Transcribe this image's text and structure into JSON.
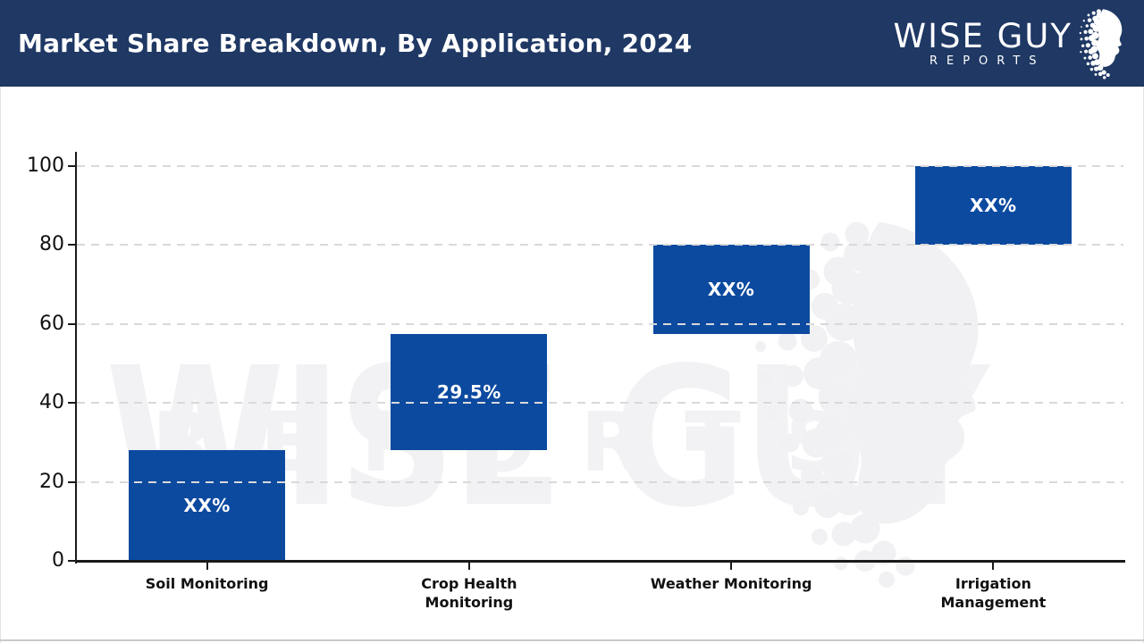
{
  "header": {
    "title": "Market Share Breakdown, By Application, 2024",
    "logo": {
      "line1": "WISE GUY",
      "line2": "REPORTS"
    }
  },
  "watermark": {
    "line1": "WISE GUY",
    "line2": "REPORTS"
  },
  "chart_data": {
    "type": "bar",
    "variant": "floating-waterfall",
    "title": "Market Share Breakdown, By Application, 2024",
    "categories": [
      "Soil Monitoring",
      "Crop Health Monitoring",
      "Weather Monitoring",
      "Irrigation Management"
    ],
    "category_lines": [
      [
        "Soil Monitoring"
      ],
      [
        "Crop Health",
        "Monitoring"
      ],
      [
        "Weather Monitoring"
      ],
      [
        "Irrigation",
        "Management"
      ]
    ],
    "series": [
      {
        "name": "Market Share (%)",
        "segments": [
          {
            "category": "Soil Monitoring",
            "start": 0,
            "end": 28,
            "label": "XX%"
          },
          {
            "category": "Crop Health Monitoring",
            "start": 28,
            "end": 57.5,
            "label": "29.5%"
          },
          {
            "category": "Weather Monitoring",
            "start": 57.5,
            "end": 80,
            "label": "XX%"
          },
          {
            "category": "Irrigation Management",
            "start": 80,
            "end": 100,
            "label": "XX%"
          }
        ]
      }
    ],
    "ylim": [
      0,
      100
    ],
    "yticks": [
      0,
      20,
      40,
      60,
      80,
      100
    ],
    "grid": {
      "horizontal": true,
      "style": "dashed"
    },
    "legend": "none",
    "colors": {
      "bar": "#0c4aa0",
      "header_bg": "#1f3864",
      "grid": "#d9d9d9",
      "axis": "#1a1a1a",
      "bar_label": "#ffffff",
      "watermark": "#f2f2f5",
      "footer_line": "#c9c9cd"
    }
  }
}
